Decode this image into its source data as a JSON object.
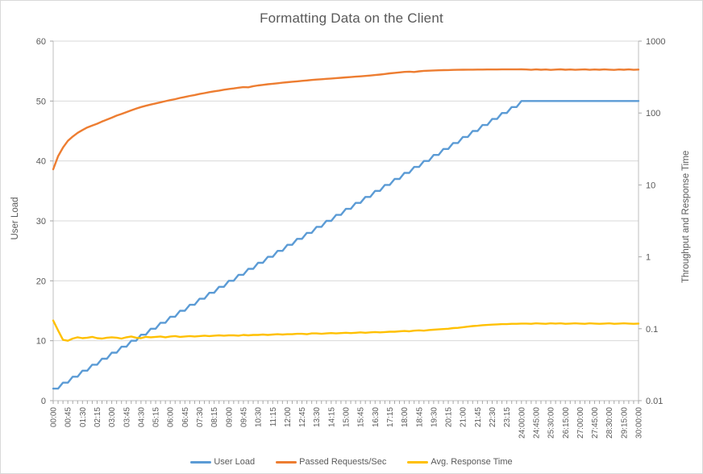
{
  "title": "Formatting Data on the Client",
  "colors": {
    "user_load": "#5B9BD5",
    "passed_requests": "#ED7D31",
    "avg_response_time": "#FFC000",
    "gridline": "#D9D9D9",
    "axis_line": "#BFBFBF",
    "tick_mark": "#A6A6A6",
    "text": "#595959",
    "background": "#FFFFFF"
  },
  "legend": [
    {
      "label": "User Load",
      "color": "#5B9BD5"
    },
    {
      "label": "Passed Requests/Sec",
      "color": "#ED7D31"
    },
    {
      "label": "Avg. Response Time",
      "color": "#FFC000"
    }
  ],
  "chart_data": {
    "type": "line",
    "title": "Formatting Data on the Client",
    "grid": "horizontal",
    "legend_position": "bottom",
    "sample_interval_seconds": 15,
    "x_major_tick_every_points": 3,
    "left_axis": {
      "label": "User Load",
      "scale": "linear",
      "min": 0,
      "max": 60,
      "ticks": [
        0,
        10,
        20,
        30,
        40,
        50,
        60
      ],
      "tick_labels": [
        "0",
        "10",
        "20",
        "30",
        "40",
        "50",
        "60"
      ]
    },
    "right_axis": {
      "label": "Throughput and Response Time",
      "scale": "log",
      "min": 0.01,
      "max": 1000,
      "ticks": [
        1000,
        100,
        10,
        1,
        0.1,
        0.01
      ],
      "tick_labels": [
        "1000",
        "100",
        "10",
        "1",
        "0.1",
        "0.01"
      ]
    },
    "x_tick_labels": [
      "00:00",
      "00:45",
      "01:30",
      "02:15",
      "03:00",
      "03:45",
      "04:30",
      "05:15",
      "06:00",
      "06:45",
      "07:30",
      "08:15",
      "09:00",
      "09:45",
      "10:30",
      "11:15",
      "12:00",
      "12:45",
      "13:30",
      "14:15",
      "15:00",
      "15:45",
      "16:30",
      "17:15",
      "18:00",
      "18:45",
      "19:30",
      "20:15",
      "21:00",
      "21:45",
      "22:30",
      "23:15",
      "24:00:00",
      "24:45:00",
      "25:30:00",
      "26:15:00",
      "27:00:00",
      "27:45:00",
      "28:30:00",
      "29:15:00",
      "30:00:00"
    ],
    "series": [
      {
        "name": "User Load",
        "axis": "left",
        "color": "#5B9BD5",
        "values": [
          2,
          2,
          3,
          3,
          4,
          4,
          5,
          5,
          6,
          6,
          7,
          7,
          8,
          8,
          9,
          9,
          10,
          10,
          11,
          11,
          12,
          12,
          13,
          13,
          14,
          14,
          15,
          15,
          16,
          16,
          17,
          17,
          18,
          18,
          19,
          19,
          20,
          20,
          21,
          21,
          22,
          22,
          23,
          23,
          24,
          24,
          25,
          25,
          26,
          26,
          27,
          27,
          28,
          28,
          29,
          29,
          30,
          30,
          31,
          31,
          32,
          32,
          33,
          33,
          34,
          34,
          35,
          35,
          36,
          36,
          37,
          37,
          38,
          38,
          39,
          39,
          40,
          40,
          41,
          41,
          42,
          42,
          43,
          43,
          44,
          44,
          45,
          45,
          46,
          46,
          47,
          47,
          48,
          48,
          49,
          49,
          50,
          50,
          50,
          50,
          50,
          50,
          50,
          50,
          50,
          50,
          50,
          50,
          50,
          50,
          50,
          50,
          50,
          50,
          50,
          50,
          50,
          50,
          50,
          50,
          50
        ]
      },
      {
        "name": "Passed Requests/Sec",
        "axis": "right",
        "color": "#ED7D31",
        "values": [
          16.5,
          25,
          33,
          41,
          47,
          53,
          58,
          63,
          67,
          71,
          76,
          81,
          86,
          92,
          97,
          103,
          109,
          115,
          121,
          126,
          131,
          136,
          141,
          146,
          151,
          156,
          162,
          167,
          173,
          178,
          184,
          189,
          195,
          200,
          205,
          211,
          216,
          220,
          225,
          229,
          228,
          236,
          242,
          246,
          251,
          255,
          259,
          264,
          268,
          272,
          276,
          280,
          284,
          288,
          292,
          295,
          299,
          302,
          306,
          309,
          313,
          316,
          320,
          324,
          328,
          332,
          337,
          343,
          349,
          356,
          362,
          367,
          373,
          376,
          372,
          380,
          386,
          388,
          391,
          393,
          395,
          396,
          398,
          399,
          400,
          401,
          401,
          402,
          402,
          403,
          403,
          403,
          404,
          404,
          404,
          404,
          405,
          403,
          399,
          404,
          400,
          403,
          398,
          402,
          405,
          400,
          403,
          399,
          402,
          404,
          399,
          403,
          400,
          404,
          401,
          398,
          403,
          400,
          404,
          399,
          402
        ]
      },
      {
        "name": "Avg. Response Time",
        "axis": "right",
        "color": "#FFC000",
        "values": [
          0.13,
          0.095,
          0.07,
          0.068,
          0.073,
          0.076,
          0.074,
          0.075,
          0.077,
          0.074,
          0.073,
          0.075,
          0.076,
          0.075,
          0.073,
          0.076,
          0.078,
          0.075,
          0.074,
          0.077,
          0.076,
          0.077,
          0.078,
          0.076,
          0.078,
          0.079,
          0.077,
          0.078,
          0.079,
          0.078,
          0.079,
          0.08,
          0.079,
          0.08,
          0.081,
          0.08,
          0.081,
          0.081,
          0.08,
          0.082,
          0.081,
          0.082,
          0.082,
          0.083,
          0.082,
          0.083,
          0.084,
          0.083,
          0.084,
          0.084,
          0.085,
          0.085,
          0.084,
          0.086,
          0.086,
          0.085,
          0.086,
          0.087,
          0.086,
          0.087,
          0.088,
          0.087,
          0.088,
          0.089,
          0.088,
          0.089,
          0.09,
          0.089,
          0.09,
          0.091,
          0.091,
          0.092,
          0.093,
          0.092,
          0.094,
          0.095,
          0.094,
          0.096,
          0.097,
          0.098,
          0.099,
          0.1,
          0.102,
          0.103,
          0.105,
          0.107,
          0.109,
          0.11,
          0.112,
          0.113,
          0.114,
          0.115,
          0.116,
          0.116,
          0.117,
          0.117,
          0.118,
          0.118,
          0.117,
          0.119,
          0.118,
          0.117,
          0.119,
          0.118,
          0.119,
          0.117,
          0.118,
          0.119,
          0.118,
          0.117,
          0.119,
          0.118,
          0.117,
          0.118,
          0.119,
          0.117,
          0.118,
          0.119,
          0.118,
          0.117,
          0.118
        ]
      }
    ]
  }
}
